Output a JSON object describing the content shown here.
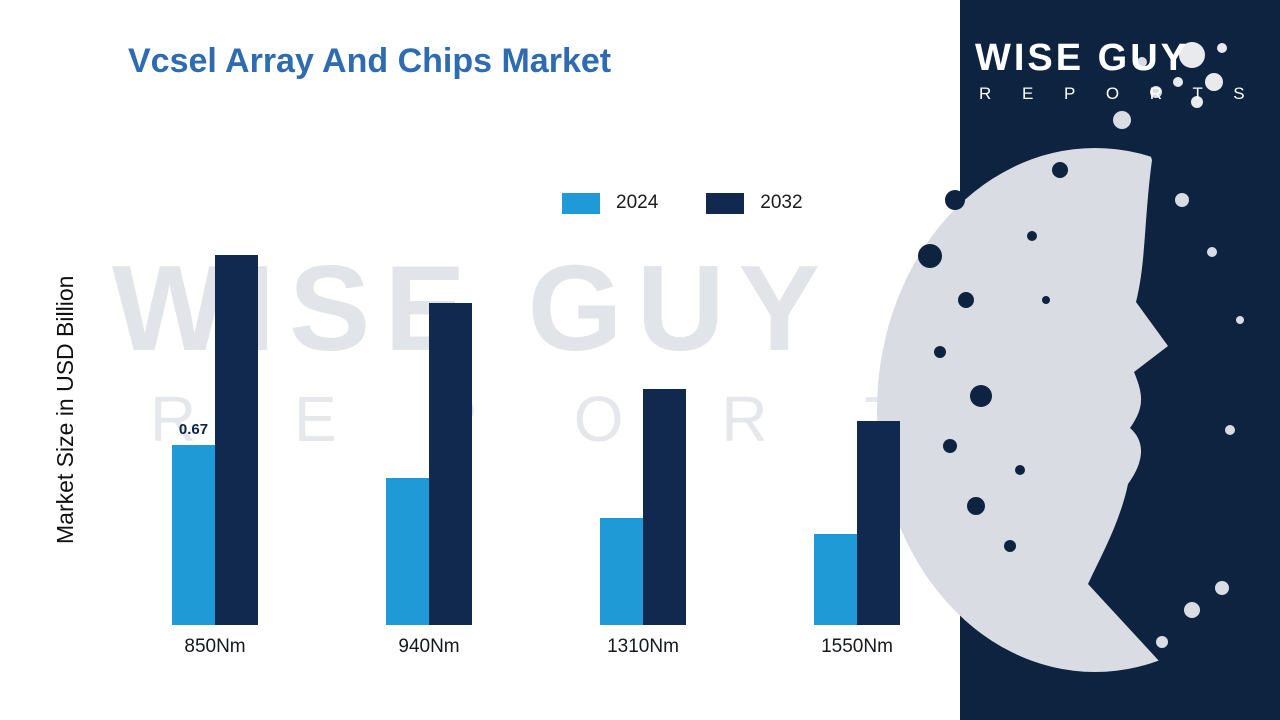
{
  "title": "Vcsel Array And Chips Market",
  "logo": {
    "line1": "WISE GUY",
    "line2": "R E P O R T S"
  },
  "watermark": {
    "line1": "WISE GUY",
    "line2": "R E P O R T S"
  },
  "colors": {
    "title": "#2e6bb0",
    "panel": "#0d2340",
    "series_2024": "#1f9ad6",
    "series_2032": "#12294f",
    "watermark": "#ccd1d8"
  },
  "chart_data": {
    "type": "bar",
    "title": "Vcsel Array And Chips Market",
    "xlabel": "",
    "ylabel": "Market Size in USD Billion",
    "categories": [
      "850Nm",
      "940Nm",
      "1310Nm",
      "1550Nm"
    ],
    "series": [
      {
        "name": "2024",
        "color": "#1f9ad6",
        "values": [
          0.67,
          0.55,
          0.4,
          0.34
        ]
      },
      {
        "name": "2032",
        "color": "#12294f",
        "values": [
          1.38,
          1.2,
          0.88,
          0.76
        ]
      }
    ],
    "ylim": [
      0,
      1.5
    ],
    "grid": false,
    "legend_position": "top",
    "annotations": [
      {
        "series": "2024",
        "category": "850Nm",
        "text": "0.67"
      }
    ]
  }
}
